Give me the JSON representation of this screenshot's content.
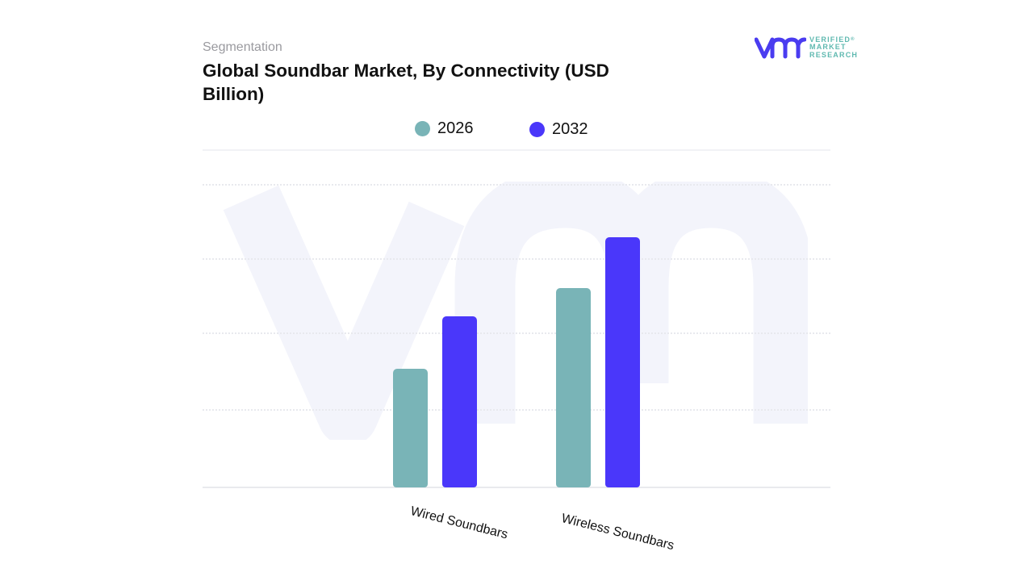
{
  "header": {
    "subtitle": "Segmentation",
    "title": "Global Soundbar Market, By Connectivity (USD Billion)"
  },
  "logo": {
    "mark": "vmr",
    "line1": "VERIFIED",
    "line2": "MARKET",
    "line3": "RESEARCH",
    "registered": "®",
    "mark_color": "#4a3cf0",
    "text_color": "#5fb9b0"
  },
  "legend": [
    {
      "label": "2026",
      "color": "#79b4b7"
    },
    {
      "label": "2032",
      "color": "#4a37fa"
    }
  ],
  "chart_data": {
    "type": "bar",
    "title": "Global Soundbar Market, By Connectivity (USD Billion)",
    "subtitle": "Segmentation",
    "categories": [
      "Wired Soundbars",
      "Wireless Soundbars"
    ],
    "series": [
      {
        "name": "2026",
        "color": "#79b4b7",
        "values": [
          1.5,
          2.5
        ],
        "pixel_heights": [
          147,
          247
        ]
      },
      {
        "name": "2032",
        "color": "#4a37fa",
        "values": [
          2.1,
          3.1
        ],
        "pixel_heights": [
          212,
          310
        ]
      }
    ],
    "values_note": "Approximate. The chart shows no tick labels or data labels. These values come from bar pixel heights on an assumed scale of ~0.01 units per pixel, so they are illustrative and not read from the chart. pixel_heights are the measured bar heights used for rendering.",
    "xlabel": "",
    "ylabel": "",
    "y_tick_labels": [],
    "grid": true,
    "gridline_style": "dotted",
    "legend_position": "top-center",
    "x_tick_rotation_deg": 14
  }
}
